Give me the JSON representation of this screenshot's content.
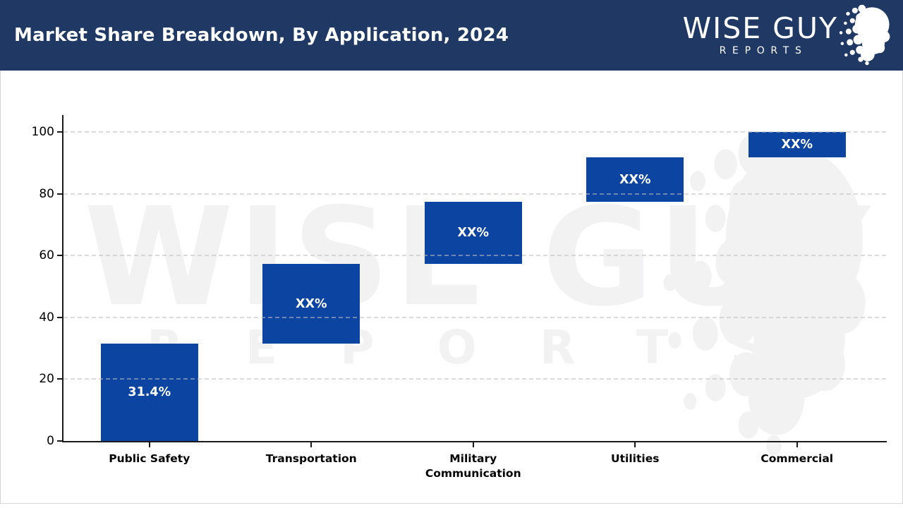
{
  "header": {
    "title": "Market Share Breakdown, By Application, 2024",
    "bg_color": "#1f3864",
    "logo": {
      "line1": "WISE GUY",
      "line2": "REPORTS"
    }
  },
  "watermark": {
    "line1": "WISE GUY",
    "line2": "REPORTS"
  },
  "chart_data": {
    "type": "bar",
    "subtype": "floating-waterfall",
    "title": "Market Share Breakdown, By Application, 2024",
    "categories": [
      "Public Safety",
      "Transportation",
      "Military Communication",
      "Utilities",
      "Commercial"
    ],
    "category_label_lines": [
      [
        "Public Safety"
      ],
      [
        "Transportation"
      ],
      [
        "Military",
        "Communication"
      ],
      [
        "Utilities"
      ],
      [
        "Commercial"
      ]
    ],
    "segments": [
      {
        "category": "Public Safety",
        "start": 0,
        "end": 31.4,
        "label": "31.4%"
      },
      {
        "category": "Transportation",
        "start": 31.4,
        "end": 57.2,
        "label": "XX%"
      },
      {
        "category": "Military Communication",
        "start": 57.2,
        "end": 77.3,
        "label": "XX%"
      },
      {
        "category": "Utilities",
        "start": 77.3,
        "end": 91.7,
        "label": "XX%"
      },
      {
        "category": "Commercial",
        "start": 91.7,
        "end": 100,
        "label": "XX%"
      }
    ],
    "xlabel": "",
    "ylabel": "",
    "ylim": [
      0,
      105.5
    ],
    "yticks": [
      0,
      20,
      40,
      60,
      80,
      100
    ],
    "grid": true,
    "grid_style": "dashed",
    "legend": false,
    "bar_color": "#0b45a1",
    "bar_label_color": "#ffffff",
    "header_color": "#1f3864"
  }
}
